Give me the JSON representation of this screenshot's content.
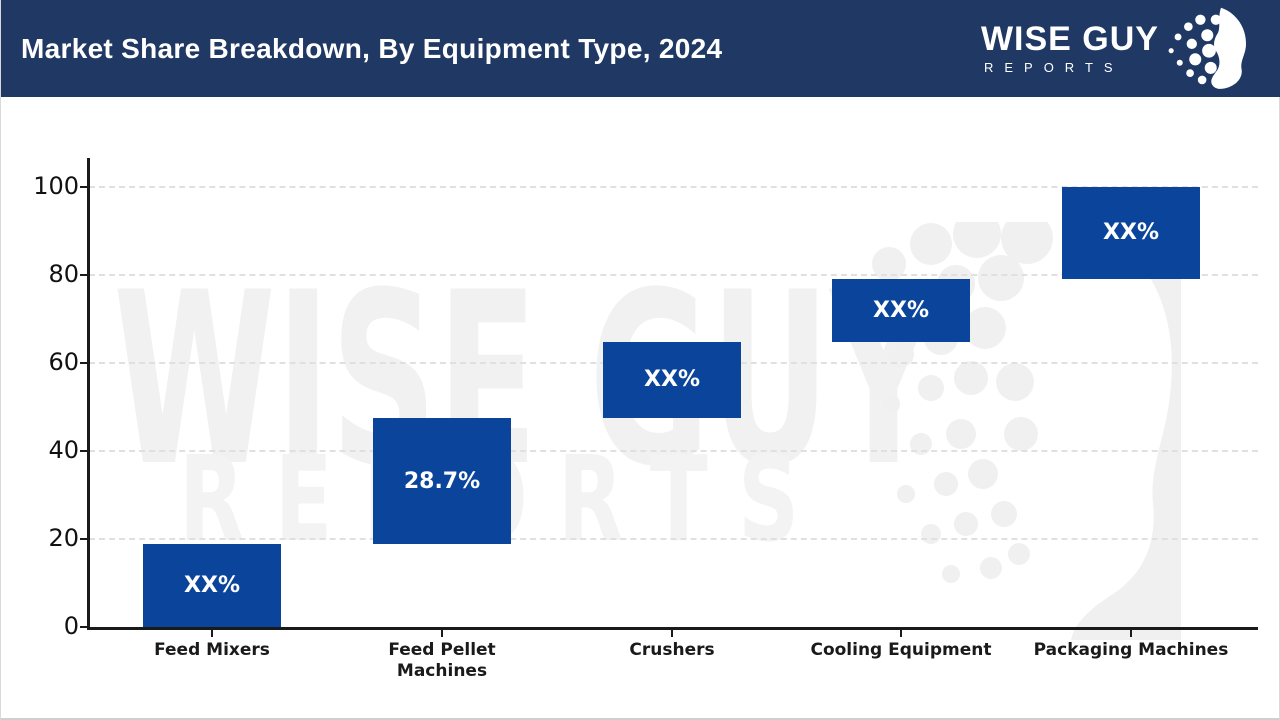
{
  "header": {
    "title": "Market Share Breakdown, By Equipment Type, 2024",
    "logo": {
      "line1": "WISE GUY",
      "line2": "REPORTS"
    }
  },
  "watermark": {
    "line1": "WISE GUY",
    "line2": "REPORTS"
  },
  "colors": {
    "header_bg": "#1f3864",
    "bar": "#0a459b",
    "axis": "#1a1a1a",
    "grid": "#e0e0e0",
    "bar_label": "#ffffff",
    "watermark": "#f1f1f1"
  },
  "chart_data": {
    "type": "bar",
    "subtype": "waterfall",
    "title": "Market Share Breakdown, By Equipment Type, 2024",
    "xlabel": "",
    "ylabel": "",
    "ylim": [
      0,
      100
    ],
    "y_ticks": [
      0,
      20,
      40,
      60,
      80,
      100
    ],
    "grid": "horizontal-dashed",
    "legend": "none",
    "categories": [
      "Feed Mixers",
      "Feed Pellet Machines",
      "Crushers",
      "Cooling Equipment",
      "Packaging Machines"
    ],
    "segments": [
      {
        "category": "Feed Mixers",
        "start": 0,
        "end": 18.8,
        "label": "XX%"
      },
      {
        "category": "Feed Pellet Machines",
        "start": 18.8,
        "end": 47.5,
        "label": "28.7%"
      },
      {
        "category": "Crushers",
        "start": 47.5,
        "end": 64.8,
        "label": "XX%"
      },
      {
        "category": "Cooling Equipment",
        "start": 64.8,
        "end": 79.1,
        "label": "XX%"
      },
      {
        "category": "Packaging Machines",
        "start": 79.1,
        "end": 100,
        "label": "XX%"
      }
    ]
  }
}
